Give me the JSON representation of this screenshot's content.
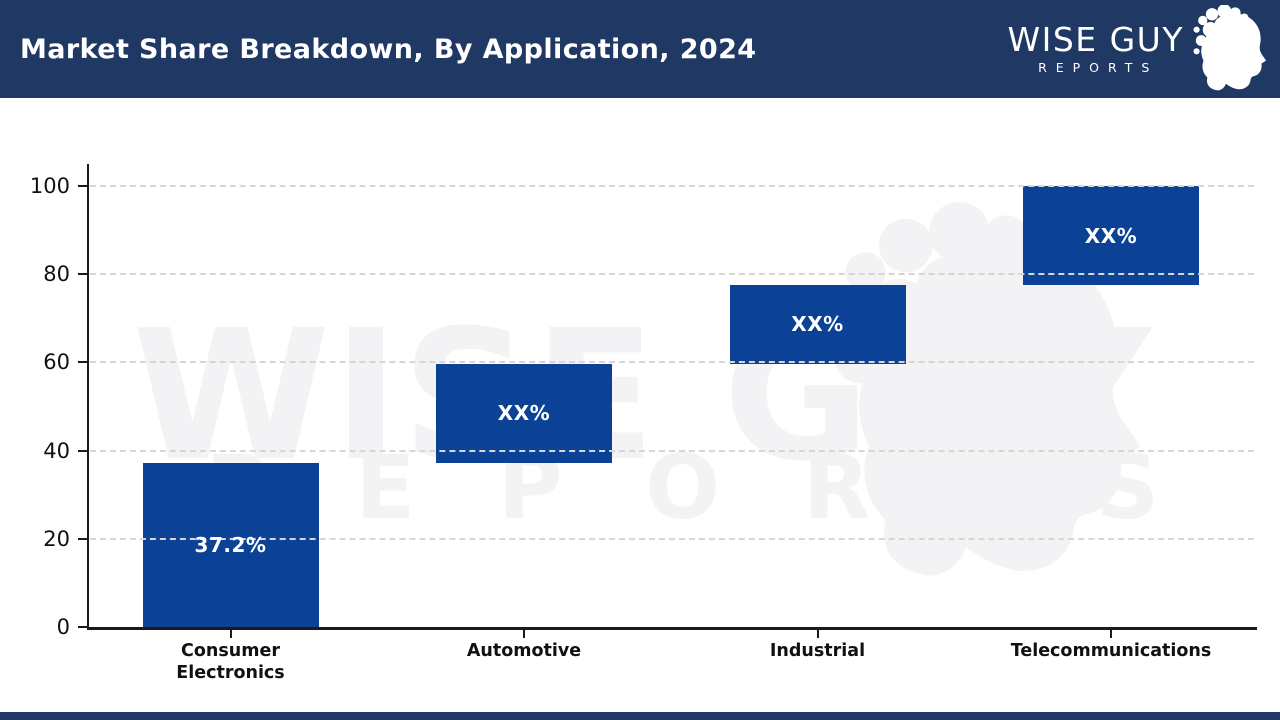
{
  "header": {
    "title": "Market Share Breakdown, By Application, 2024",
    "logo": {
      "line1": "WISE GUY",
      "line2": "REPORTS"
    }
  },
  "watermark": {
    "line1": "WISE GUY",
    "line2": "R E P O R T S"
  },
  "chart_data": {
    "type": "bar",
    "subtype": "waterfall",
    "title": "Market Share Breakdown, By Application, 2024",
    "categories": [
      "Consumer Electronics",
      "Automotive",
      "Industrial",
      "Telecommunications"
    ],
    "segments": [
      {
        "category": "Consumer Electronics",
        "start": 0,
        "end": 37.2,
        "label": "37.2%"
      },
      {
        "category": "Automotive",
        "start": 37.2,
        "end": 59.7,
        "label": "XX%"
      },
      {
        "category": "Industrial",
        "start": 59.7,
        "end": 77.5,
        "label": "XX%"
      },
      {
        "category": "Telecommunications",
        "start": 77.5,
        "end": 100,
        "label": "XX%"
      }
    ],
    "xlabel": "",
    "ylabel": "",
    "ylim": [
      0,
      105
    ],
    "yticks": [
      0,
      20,
      40,
      60,
      80,
      100
    ],
    "grid": {
      "horizontal": true,
      "style": "dashed",
      "drawn_over_bars": true
    },
    "legend": null,
    "colors": {
      "bar": "#0b4296",
      "bar_label": "#ffffff",
      "header_bg": "#203864",
      "grid": "#d6d6d6",
      "axis": "#1a1a1a",
      "watermark": "#f3f3f5"
    }
  }
}
